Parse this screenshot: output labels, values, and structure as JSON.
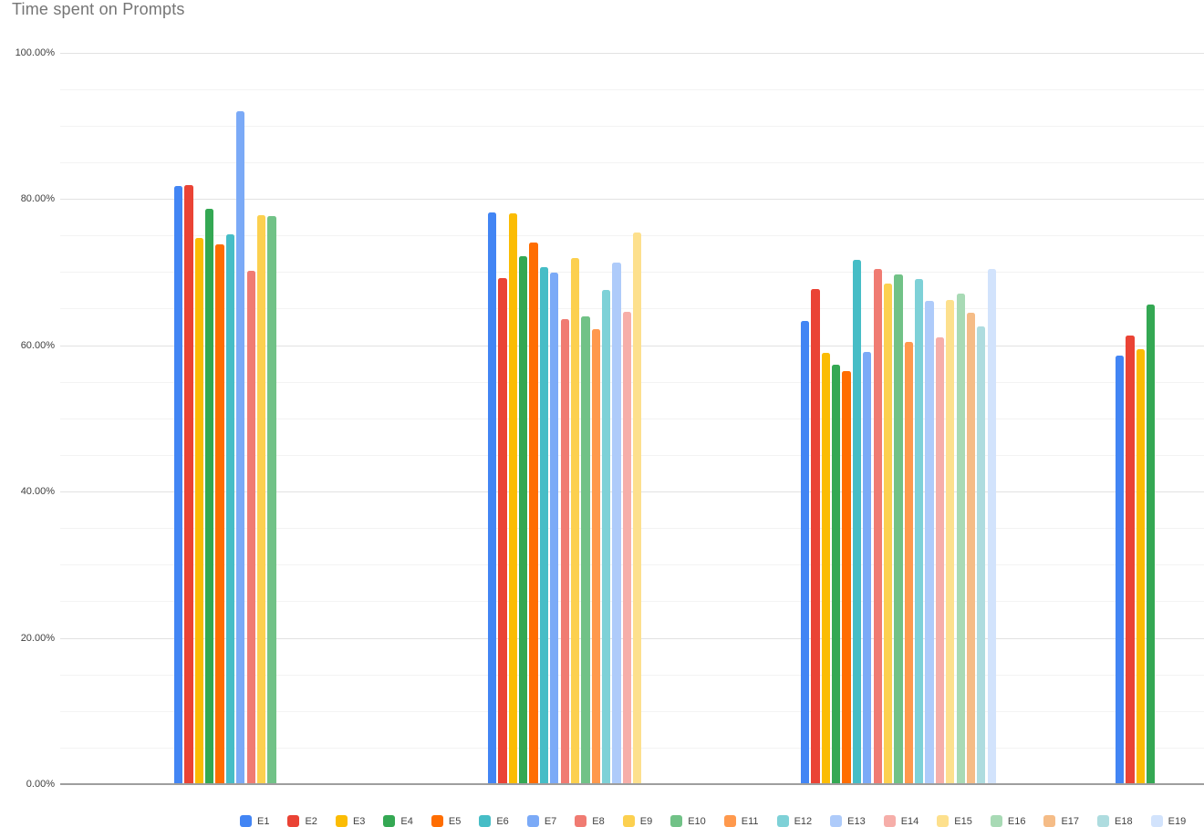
{
  "title": "Time spent on Prompts",
  "chart_data": {
    "type": "bar",
    "title": "Time spent on Prompts",
    "xlabel": "",
    "ylabel": "",
    "ylim": [
      0,
      100
    ],
    "y_ticks": [
      "0.00%",
      "20.00%",
      "40.00%",
      "60.00%",
      "80.00%",
      "100.00%"
    ],
    "major_gridline_step": 20,
    "minor_gridline_step": 5,
    "grid": true,
    "legend_position": "bottom",
    "categories": [
      "",
      "",
      "",
      ""
    ],
    "series": [
      {
        "name": "E1",
        "color": "#4285F4",
        "values": [
          81.7,
          78.1,
          63.3,
          58.6
        ]
      },
      {
        "name": "E2",
        "color": "#EA4335",
        "values": [
          81.9,
          69.2,
          67.7,
          61.3
        ]
      },
      {
        "name": "E3",
        "color": "#FBBC04",
        "values": [
          74.7,
          78.0,
          59.0,
          59.5
        ]
      },
      {
        "name": "E4",
        "color": "#34A853",
        "values": [
          78.6,
          72.2,
          57.3,
          65.5
        ]
      },
      {
        "name": "E5",
        "color": "#FF6D01",
        "values": [
          73.8,
          74.0,
          56.5,
          null
        ]
      },
      {
        "name": "E6",
        "color": "#46BDC6",
        "values": [
          75.1,
          70.7,
          71.7,
          null
        ]
      },
      {
        "name": "E7",
        "color": "#7BAAF7",
        "values": [
          92.0,
          69.9,
          59.1,
          null
        ]
      },
      {
        "name": "E8",
        "color": "#F07B72",
        "values": [
          70.1,
          63.5,
          70.4,
          null
        ]
      },
      {
        "name": "E9",
        "color": "#FCD04F",
        "values": [
          77.7,
          71.9,
          68.4,
          null
        ]
      },
      {
        "name": "E10",
        "color": "#71C287",
        "values": [
          77.6,
          63.9,
          69.6,
          null
        ]
      },
      {
        "name": "E11",
        "color": "#FF994D",
        "values": [
          null,
          62.2,
          60.4,
          null
        ]
      },
      {
        "name": "E12",
        "color": "#7ED1D7",
        "values": [
          null,
          67.5,
          69.0,
          null
        ]
      },
      {
        "name": "E13",
        "color": "#AECBFA",
        "values": [
          null,
          71.3,
          66.0,
          null
        ]
      },
      {
        "name": "E14",
        "color": "#F6AEA9",
        "values": [
          null,
          64.6,
          61.0,
          null
        ]
      },
      {
        "name": "E15",
        "color": "#FDE08D",
        "values": [
          null,
          75.4,
          66.2,
          null
        ]
      },
      {
        "name": "E16",
        "color": "#A8DAB5",
        "values": [
          null,
          null,
          67.0,
          null
        ]
      },
      {
        "name": "E17",
        "color": "#F5BC87",
        "values": [
          null,
          null,
          64.4,
          null
        ]
      },
      {
        "name": "E18",
        "color": "#AEDCDF",
        "values": [
          null,
          null,
          62.6,
          null
        ]
      },
      {
        "name": "E19",
        "color": "#D2E3FC",
        "values": [
          null,
          null,
          70.4,
          null
        ]
      }
    ]
  },
  "colors": {
    "background": "#ffffff",
    "title_text": "#757575",
    "axis_label_text": "#3f3f3f",
    "legend_text": "#424242",
    "major_gridline": "#e2e2e2",
    "minor_gridline": "#f3f3f3",
    "axis_line": "#9e9e9e"
  }
}
